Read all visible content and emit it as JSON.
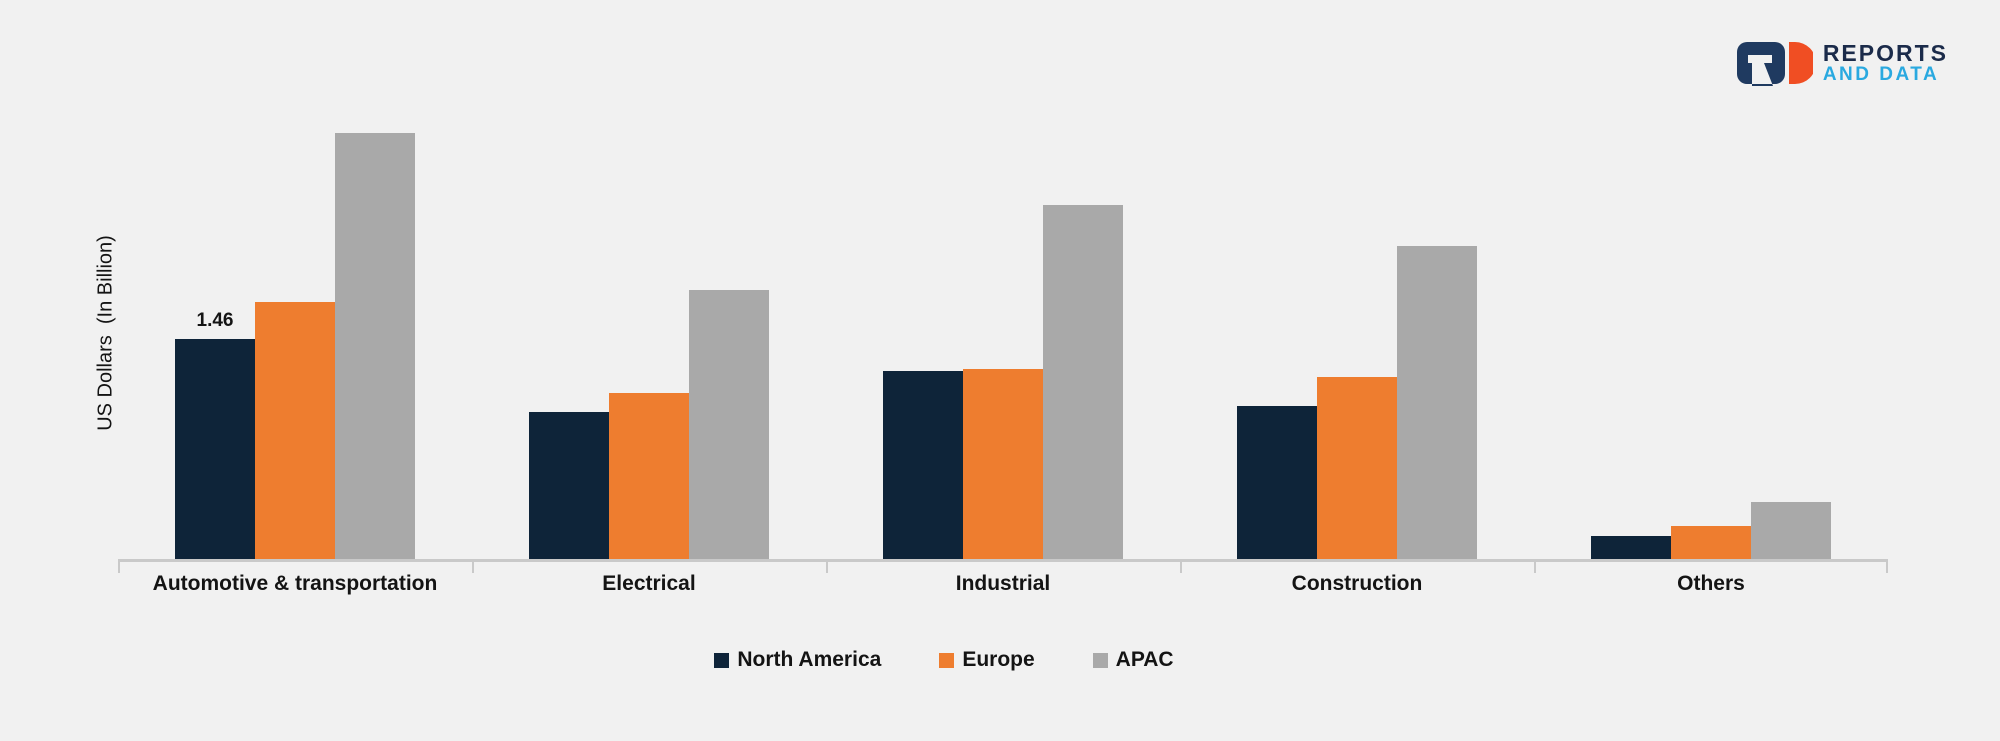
{
  "logo": {
    "name": "Reports and Data",
    "line1": "REPORTS",
    "line2": "AND DATA",
    "colors": {
      "mark_navy": "#1f3a60",
      "mark_orange": "#f04e23",
      "text_navy": "#1b2b4a",
      "text_blue": "#2aa9e0"
    }
  },
  "chart_data": {
    "type": "bar",
    "title": "",
    "xlabel": "",
    "ylabel": "US Dollars  (In Billion)",
    "categories": [
      "Automotive & transportation",
      "Electrical",
      "Industrial",
      "Construction",
      "Others"
    ],
    "series": [
      {
        "name": "North America",
        "color": "#0e2439",
        "values": [
          1.46,
          0.98,
          1.25,
          1.02,
          0.15
        ]
      },
      {
        "name": "Europe",
        "color": "#ee7d2f",
        "values": [
          1.71,
          1.1,
          1.26,
          1.21,
          0.22
        ]
      },
      {
        "name": "APAC",
        "color": "#a9a9a9",
        "values": [
          2.83,
          1.79,
          2.35,
          2.08,
          0.38
        ]
      }
    ],
    "point_labels": [
      {
        "series": 0,
        "category": 0,
        "text": "1.46"
      }
    ],
    "ylim": [
      0,
      3.19
    ],
    "grid": false,
    "y_axis_ticks_visible": false,
    "legend_position": "bottom",
    "axis_color": "#c9c9c9",
    "background_color": "#f1f1f1"
  }
}
